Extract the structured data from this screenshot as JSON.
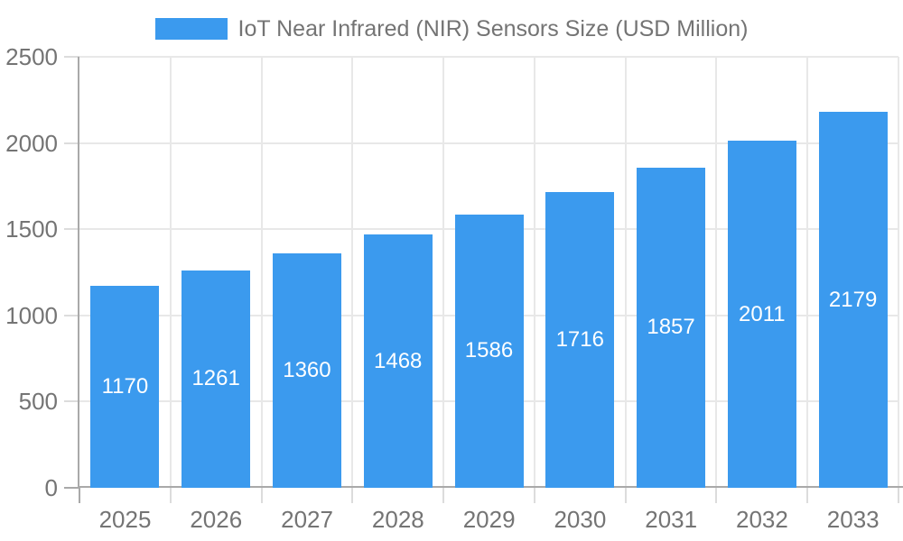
{
  "chart_data": {
    "type": "bar",
    "title": "",
    "legend": {
      "label": "IoT Near Infrared (NIR) Sensors Size (USD Million)",
      "position": "top"
    },
    "categories": [
      "2025",
      "2026",
      "2027",
      "2028",
      "2029",
      "2030",
      "2031",
      "2032",
      "2033"
    ],
    "series": [
      {
        "name": "IoT Near Infrared (NIR) Sensors Size (USD Million)",
        "values": [
          1170,
          1261,
          1360,
          1468,
          1586,
          1716,
          1857,
          2011,
          2179
        ]
      }
    ],
    "xlabel": "",
    "ylabel": "",
    "ylim": [
      0,
      2500
    ],
    "yticks": [
      0,
      500,
      1000,
      1500,
      2000,
      2500
    ],
    "grid": true,
    "bar_labels_visible": true,
    "colors": {
      "bar": "#3B9AEE",
      "axis_line": "#A9A9A9",
      "grid_line": "#E8E8E8",
      "tick_mark": "#DCDCDC",
      "axis_text": "#747474",
      "legend_text": "#747474",
      "bar_label_text": "#FFFFFF"
    }
  }
}
